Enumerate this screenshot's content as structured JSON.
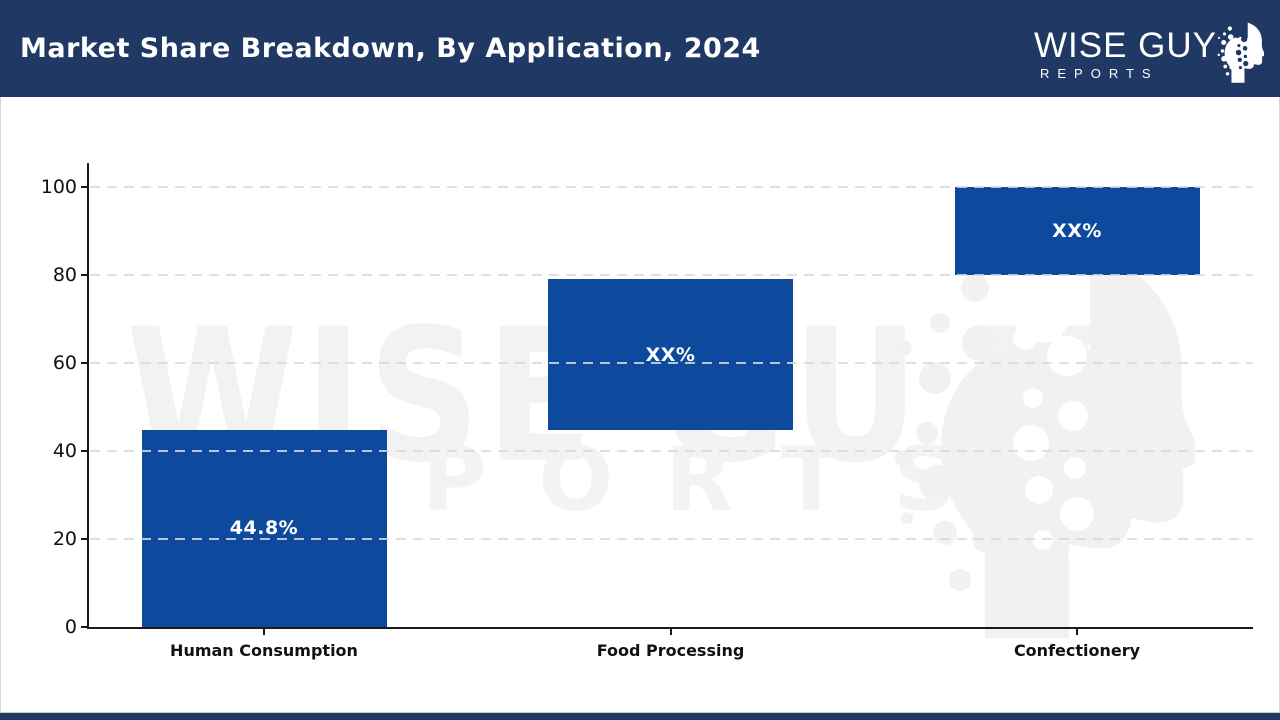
{
  "header": {
    "title": "Market Share Breakdown, By Application, 2024",
    "background_color": "#203864",
    "brand": {
      "name": "WISE GUY",
      "subname": "REPORTS"
    }
  },
  "watermark": {
    "line1": "WISE GU Y",
    "line2": "REPORTS"
  },
  "chart_data": {
    "type": "bar",
    "subtype": "waterfall",
    "title": "Market Share Breakdown, By Application, 2024",
    "categories": [
      "Human Consumption",
      "Food Processing",
      "Confectionery"
    ],
    "series": [
      {
        "name": "Market Share (%)",
        "segments": [
          {
            "category": "Human Consumption",
            "start": 0,
            "end": 44.8,
            "label": "44.8%"
          },
          {
            "category": "Food Processing",
            "start": 44.8,
            "end": 79,
            "label": "XX%"
          },
          {
            "category": "Confectionery",
            "start": 80,
            "end": 100,
            "label": "XX%"
          }
        ]
      }
    ],
    "xlabel": "",
    "ylabel": "",
    "ylim": [
      0,
      100
    ],
    "yticks": [
      0,
      20,
      40,
      60,
      80,
      100
    ],
    "grid": "horizontal-dashed",
    "legend": "none",
    "bar_color": "#0d4a9d",
    "bar_label_color": "#ffffff"
  }
}
